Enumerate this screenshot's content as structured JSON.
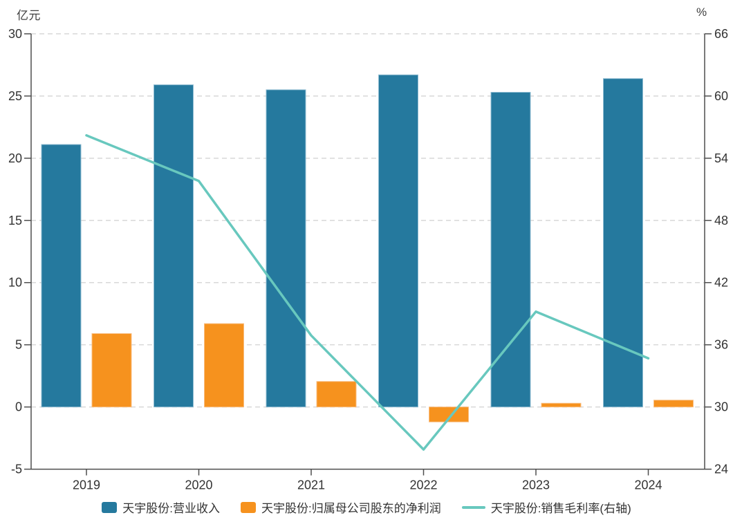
{
  "chart_data": {
    "type": "combo",
    "title": "",
    "categories": [
      "2019",
      "2020",
      "2021",
      "2022",
      "2023",
      "2024"
    ],
    "series": [
      {
        "name": "天宇股份:营业收入",
        "type": "bar",
        "axis": "left",
        "color": "#25799E",
        "edge_color": "#8FBCD2",
        "values": [
          21.1,
          25.9,
          25.5,
          26.7,
          25.3,
          26.4
        ]
      },
      {
        "name": "天宇股份:归属母公司股东的净利润",
        "type": "bar",
        "axis": "left",
        "color": "#F6921E",
        "edge_color": "#F9BD80",
        "values": [
          5.9,
          6.7,
          2.05,
          -1.2,
          0.3,
          0.55
        ]
      },
      {
        "name": "天宇股份:销售毛利率(右轴)",
        "type": "line",
        "axis": "right",
        "color": "#68C8BE",
        "values": [
          56.2,
          51.8,
          36.9,
          25.9,
          39.2,
          34.7
        ]
      }
    ],
    "left_axis": {
      "unit": "亿元",
      "min": -5,
      "max": 30,
      "step": 5,
      "ticks": [
        30,
        25,
        20,
        15,
        10,
        5,
        0,
        -5
      ]
    },
    "right_axis": {
      "unit": "%",
      "min": 24,
      "max": 66,
      "step": 6,
      "ticks": [
        66,
        60,
        54,
        48,
        42,
        36,
        30,
        24
      ]
    },
    "grid": "horizontal dashed",
    "grid_color": "#D8D8D8",
    "axis_color": "#4D4D4D",
    "tick_label_color": "#333333",
    "legend_position": "bottom"
  }
}
